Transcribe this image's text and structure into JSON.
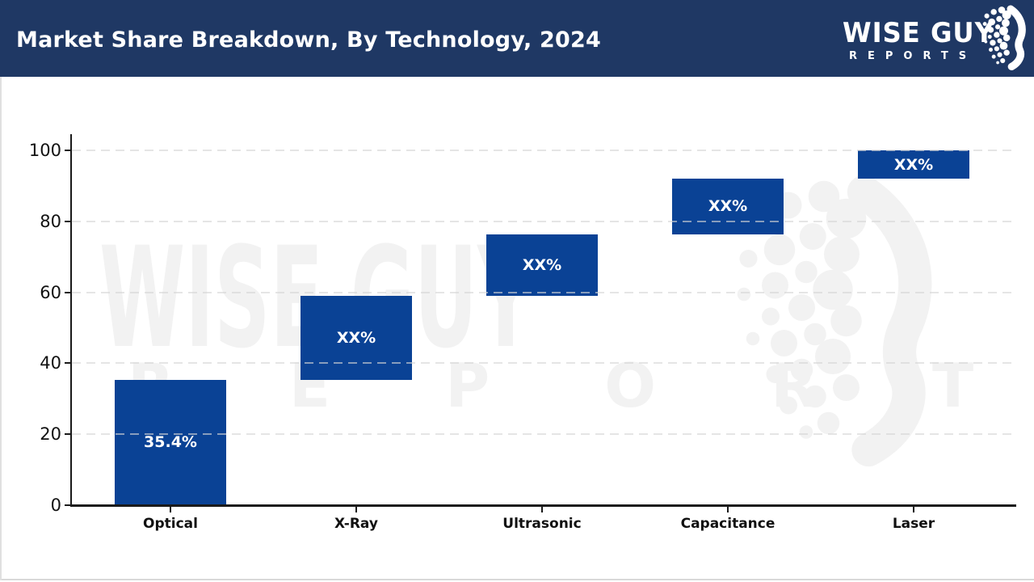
{
  "header": {
    "title": "Market Share Breakdown, By Technology, 2024",
    "logo": {
      "line1": "WISE GUY",
      "line2": "REPORTS"
    }
  },
  "watermark": {
    "line1": "WISE GUY",
    "line2": "R E P O R T S"
  },
  "colors": {
    "header_bg": "#1f3864",
    "bar": "#0a4295",
    "grid": "#dcdcdc",
    "axis": "#1a1a1a",
    "bar_label": "#ffffff",
    "watermark": "#f2f2f2"
  },
  "chart_data": {
    "type": "bar",
    "subtype": "waterfall",
    "title": "Market Share Breakdown, By Technology, 2024",
    "xlabel": "",
    "ylabel": "",
    "categories": [
      "Optical",
      "X-Ray",
      "Ultrasonic",
      "Capacitance",
      "Laser"
    ],
    "segments": [
      {
        "category": "Optical",
        "start": 0,
        "end": 35.4,
        "label": "35.4%"
      },
      {
        "category": "X-Ray",
        "start": 35.4,
        "end": 59.0,
        "label": "XX%"
      },
      {
        "category": "Ultrasonic",
        "start": 59.0,
        "end": 76.4,
        "label": "XX%"
      },
      {
        "category": "Capacitance",
        "start": 76.4,
        "end": 92.0,
        "label": "XX%"
      },
      {
        "category": "Laser",
        "start": 92.0,
        "end": 100.0,
        "label": "XX%"
      }
    ],
    "yticks": [
      0,
      20,
      40,
      60,
      80,
      100
    ],
    "ylim": [
      0,
      105
    ],
    "grid": "horizontal-dashed-over-bars",
    "legend": "none"
  }
}
